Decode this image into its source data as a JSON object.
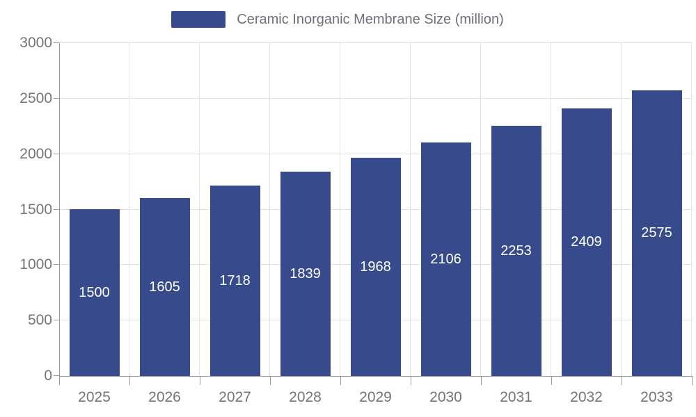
{
  "legend": {
    "label": "Ceramic Inorganic Membrane Size (million)"
  },
  "chart_data": {
    "type": "bar",
    "title": "Ceramic Inorganic Membrane Size (million)",
    "categories": [
      "2025",
      "2026",
      "2027",
      "2028",
      "2029",
      "2030",
      "2031",
      "2032",
      "2033"
    ],
    "values": [
      1500,
      1605,
      1718,
      1839,
      1968,
      2106,
      2253,
      2409,
      2575
    ],
    "xlabel": "",
    "ylabel": "",
    "ylim": [
      0,
      3000
    ],
    "yticks": [
      0,
      500,
      1000,
      1500,
      2000,
      2500,
      3000
    ],
    "grid": true,
    "legend_position": "top",
    "value_labels": "inside-center",
    "colors": {
      "bar": "#364a8c",
      "value_label": "#ffffff",
      "axis_text": "#757575",
      "legend_text": "#6e7079",
      "grid_line": "#e3e3e3",
      "axis_line": "#9a9aa2"
    }
  }
}
